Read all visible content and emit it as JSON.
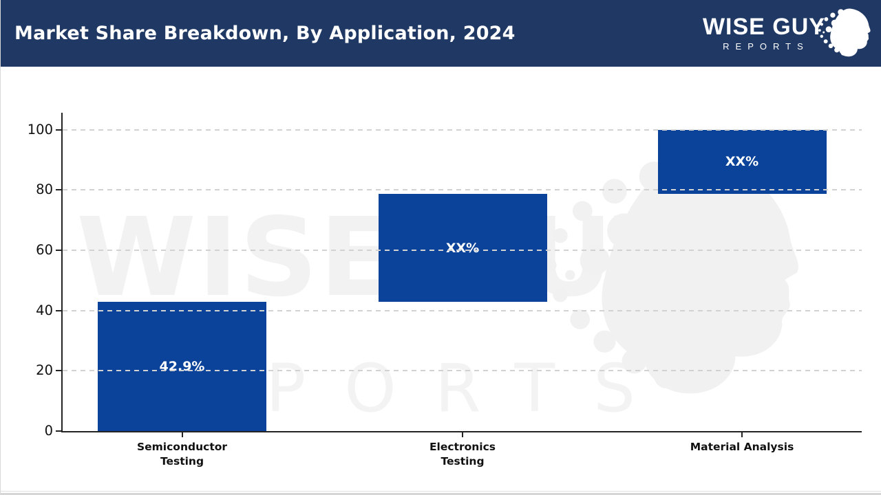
{
  "header": {
    "title": "Market Share Breakdown, By Application, 2024",
    "bg_color": "#1f3864",
    "logo": {
      "wordmark": "WISE GUY",
      "subtext": "REPORTS"
    }
  },
  "watermark": {
    "line1": "WISE GUY",
    "line2": "REPORTS"
  },
  "chart_data": {
    "type": "bar",
    "subtype": "waterfall",
    "title": "Market Share Breakdown, By Application, 2024",
    "categories": [
      "Semiconductor Testing",
      "Electronics Testing",
      "Material Analysis"
    ],
    "category_lines": [
      [
        "Semiconductor",
        "Testing"
      ],
      [
        "Electronics",
        "Testing"
      ],
      [
        "Material Analysis"
      ]
    ],
    "segments": [
      {
        "category": "Semiconductor Testing",
        "start": 0,
        "end": 42.9,
        "value": 42.9,
        "label": "42.9%"
      },
      {
        "category": "Electronics Testing",
        "start": 42.9,
        "end": 78.6,
        "value": 35.7,
        "label": "XX%"
      },
      {
        "category": "Material Analysis",
        "start": 78.6,
        "end": 100,
        "value": 21.4,
        "label": "XX%"
      }
    ],
    "ylim": [
      0,
      100
    ],
    "yticks": [
      0,
      20,
      40,
      60,
      80,
      100
    ],
    "xlabel": "",
    "ylabel": "",
    "bar_color": "#0a4399",
    "grid": "horizontal-dashed-over-bars",
    "legend": "none"
  }
}
